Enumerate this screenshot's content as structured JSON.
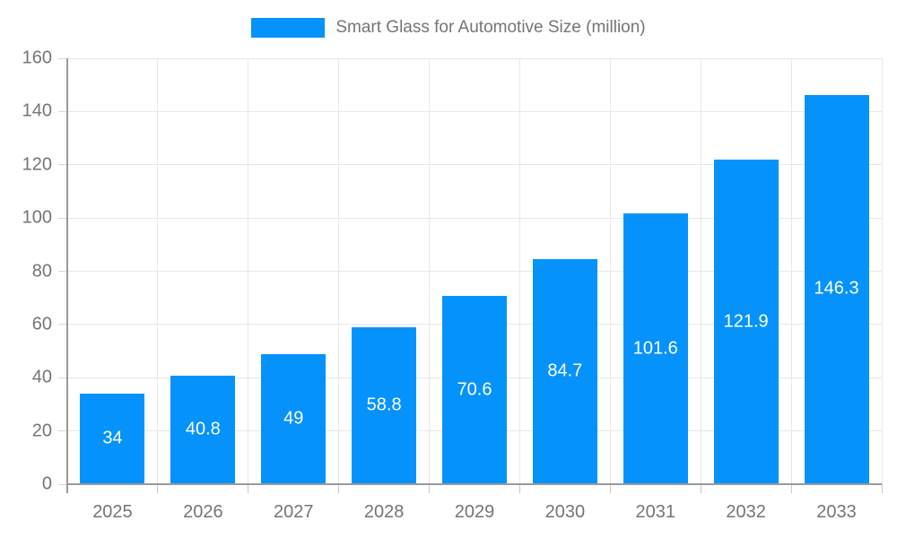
{
  "legend": {
    "label": "Smart Glass for Automotive Size (million)"
  },
  "chart_data": {
    "type": "bar",
    "title": "Smart Glass for Automotive Size (million)",
    "categories": [
      "2025",
      "2026",
      "2027",
      "2028",
      "2029",
      "2030",
      "2031",
      "2032",
      "2033"
    ],
    "values": [
      34,
      40.8,
      49,
      58.8,
      70.6,
      84.7,
      101.6,
      121.9,
      146.3
    ],
    "xlabel": "",
    "ylabel": "",
    "ylim": [
      0,
      160
    ],
    "ytick_step": 20,
    "grid": true,
    "legend_position": "top-center",
    "value_labels": "inside-center"
  },
  "colors": {
    "bar": "#0593fb",
    "value_label": "#ffffff",
    "tick_text": "#757575",
    "legend_text": "#757575",
    "gridline": "#e8e8e8",
    "axis": "#9a9a9a",
    "background": "#ffffff"
  }
}
